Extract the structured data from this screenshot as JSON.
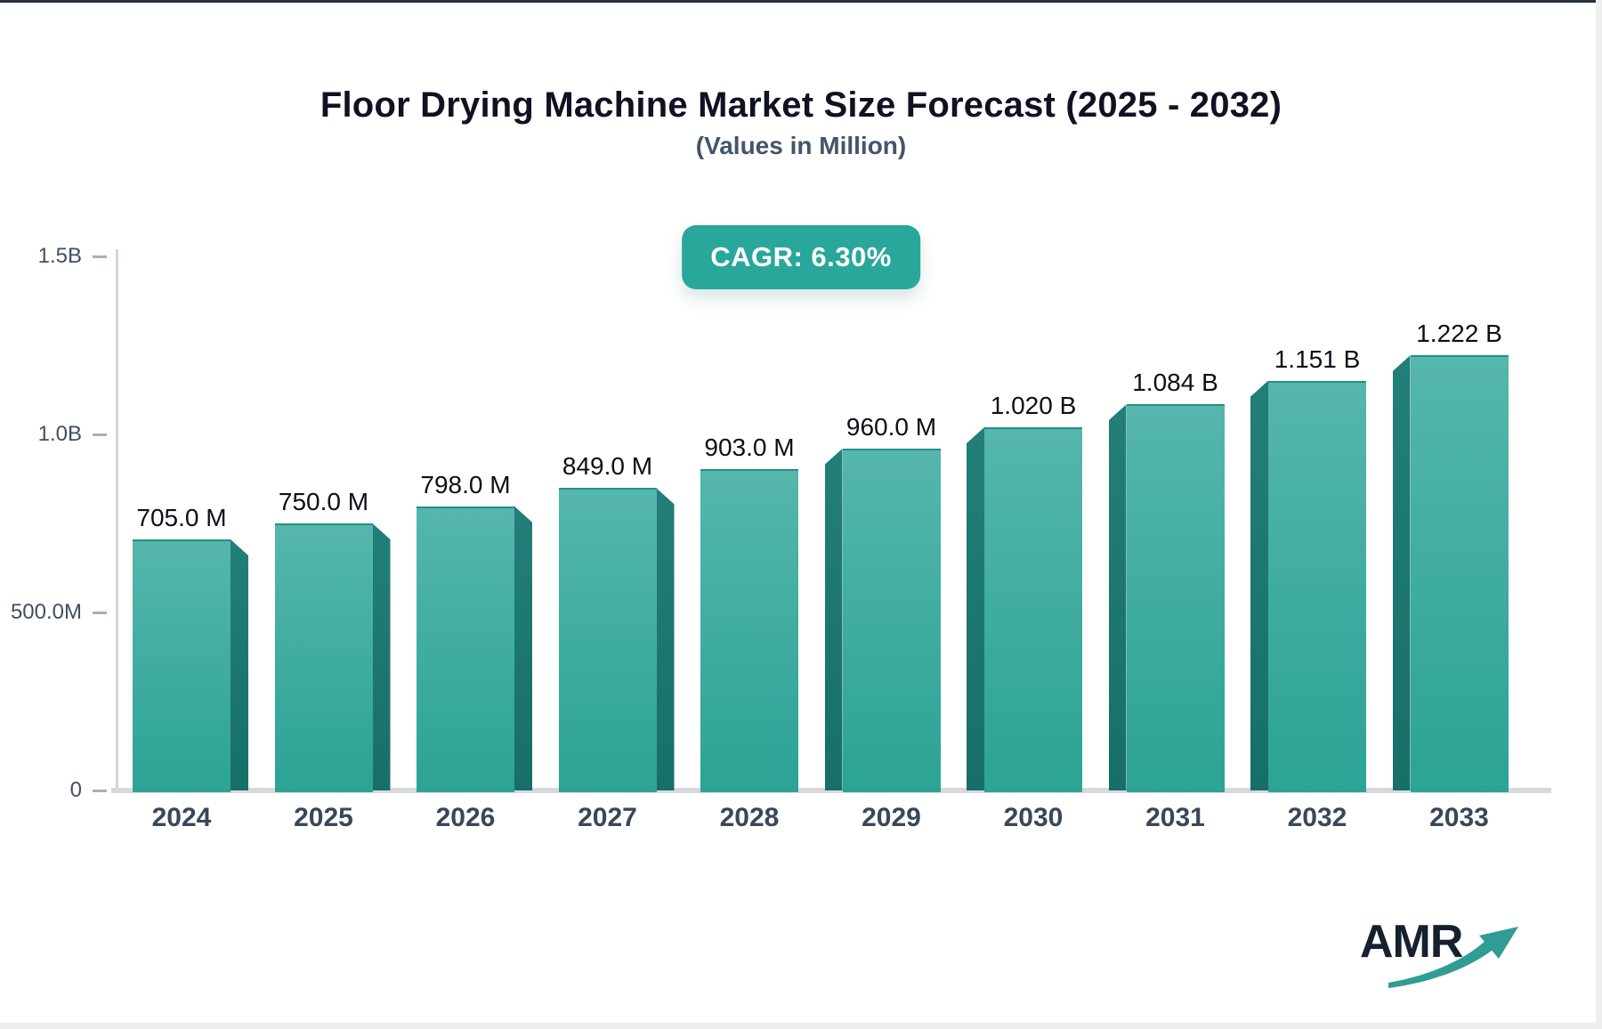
{
  "header": {
    "title": "Floor Drying Machine Market Size Forecast (2025 - 2032)",
    "subtitle": "(Values in Million)",
    "cagr_label": "CAGR: 6.30%"
  },
  "logo": {
    "text": "AMR",
    "arrow_icon": "growth-arrow-icon"
  },
  "colors": {
    "accent_teal": "#2aa79b",
    "badge_bg": "#2aa79b",
    "badge_text": "#ffffff",
    "bar_face_top": "#55b6ac",
    "bar_face_bottom": "#2ba395",
    "bar_side": "#1c7d75",
    "axis_line": "#d2d3db",
    "baseline": "#d8d9e0",
    "title_text": "#101223",
    "subtitle_text": "#44546a",
    "axis_label_text": "#414e63",
    "year_label_text": "#3a4659",
    "value_label_text": "#0d0e18",
    "logo_navy": "#16212e",
    "logo_teal": "#2f9c95"
  },
  "chart_data": {
    "type": "bar",
    "title": "Floor Drying Machine Market Size Forecast (2025 - 2032)",
    "subtitle": "(Values in Million)",
    "annotations": [
      "CAGR: 6.30%"
    ],
    "categories": [
      "2024",
      "2025",
      "2026",
      "2027",
      "2028",
      "2029",
      "2030",
      "2031",
      "2032",
      "2033"
    ],
    "values": [
      705,
      750,
      798,
      849,
      903,
      960,
      1020,
      1084,
      1151,
      1222
    ],
    "value_unit": "millions",
    "value_labels": [
      "705.0 M",
      "750.0 M",
      "798.0 M",
      "849.0 M",
      "903.0 M",
      "960.0 M",
      "1.020 B",
      "1.084 B",
      "1.151 B",
      "1.222 B"
    ],
    "xlabel": "",
    "ylabel": "",
    "ylim": [
      0,
      1500
    ],
    "yticks": [
      {
        "value": 1500,
        "label": "1.5B"
      },
      {
        "value": 1000,
        "label": "1.0B"
      },
      {
        "value": 500,
        "label": "500.0M"
      },
      {
        "value": 0,
        "label": "0"
      }
    ],
    "grid": false,
    "legend": false
  }
}
